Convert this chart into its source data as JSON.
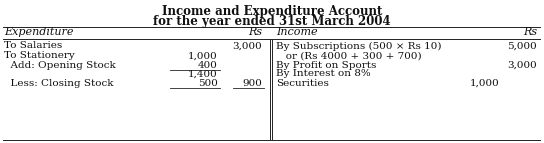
{
  "title_line1": "Income and Expenditure Account",
  "title_line2": "for the year ended 31st March 2004",
  "left_header": "Expenditure",
  "left_rs_header": "Rs",
  "right_header": "Income",
  "right_rs_header": "Rs",
  "left_rows": [
    {
      "col1": "To Salaries",
      "col2": "",
      "col3": "3,000"
    },
    {
      "col1": "To Stationery",
      "col2": "1,000",
      "col3": ""
    },
    {
      "col1": "  Add: Opening Stock",
      "col2": "400",
      "col3": ""
    },
    {
      "col1": "",
      "col2": "1,400",
      "col3": ""
    },
    {
      "col1": "  Less: Closing Stock",
      "col2": "500",
      "col3": "900"
    }
  ],
  "right_rows": [
    {
      "col1": "By Subscriptions (500 × Rs 10)",
      "col2": "",
      "col3": "5,000"
    },
    {
      "col1": "   or (Rs 4000 + 300 + 700)",
      "col2": "",
      "col3": ""
    },
    {
      "col1": "By Profit on Sports",
      "col2": "",
      "col3": "3,000"
    },
    {
      "col1": "By Interest on 8%",
      "col2": "",
      "col3": ""
    },
    {
      "col1": "Securities",
      "col2": "1,000",
      "col3": ""
    }
  ],
  "line_color": "#222222",
  "text_color": "#111111",
  "title_fontsize": 8.5,
  "header_fontsize": 8.0,
  "body_fontsize": 7.5,
  "figw": 5.44,
  "figh": 1.43,
  "dpi": 100
}
